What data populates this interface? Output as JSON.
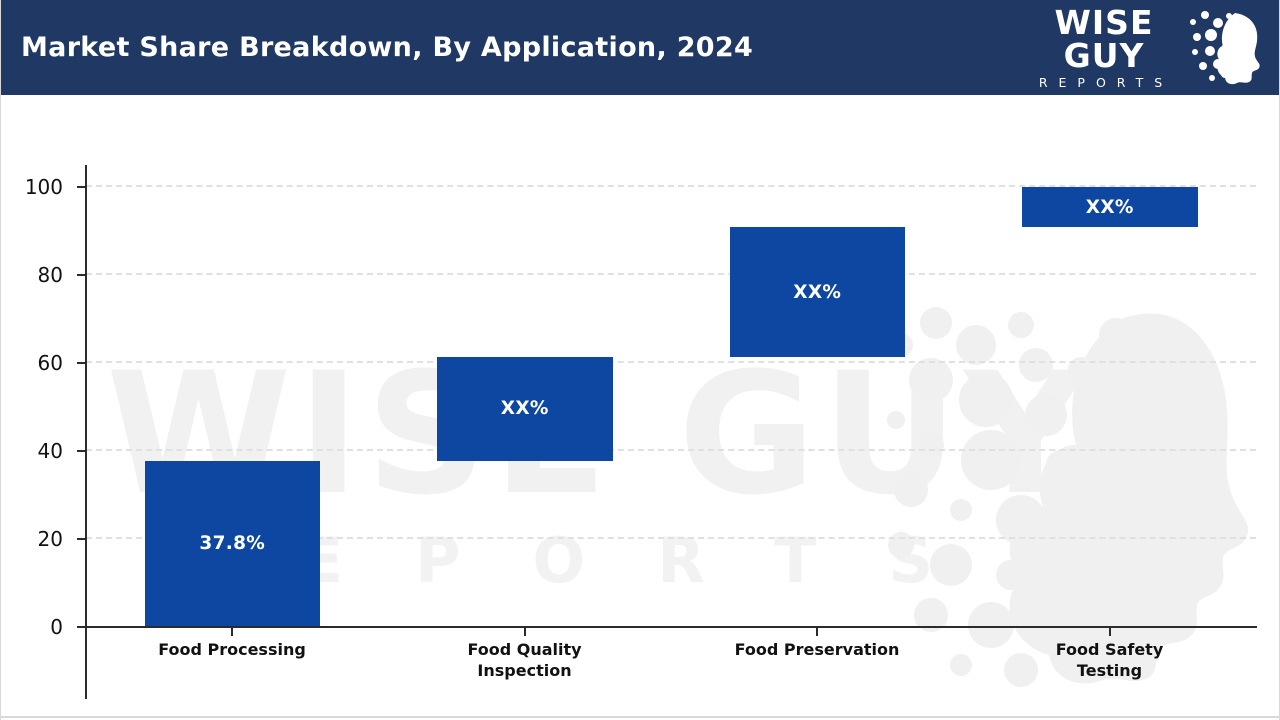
{
  "header": {
    "title": "Market Share Breakdown, By Application, 2024",
    "logo": {
      "wordmark": "WISE GUY",
      "subtext": "REPORTS"
    }
  },
  "watermark": {
    "wordmark": "WISE GUY",
    "subtext": "REPORTS"
  },
  "colors": {
    "header_bg": "#1f3864",
    "bar_fill": "#0d47a1",
    "bar_label": "#ffffff",
    "gridline": "#e0e0e0",
    "axis": "#2b2b2b",
    "tick_label": "#111111",
    "watermark": "#f1f1f1",
    "frame_border": "#d9d9d9",
    "background": "#ffffff"
  },
  "chart_data": {
    "type": "bar",
    "subtype": "floating-waterfall",
    "title": "Market Share Breakdown, By Application, 2024",
    "xlabel": "",
    "ylabel": "",
    "ylim": [
      0,
      100
    ],
    "yticks": [
      0,
      20,
      40,
      60,
      80,
      100
    ],
    "grid": "horizontal-dashed",
    "legend": "none",
    "categories": [
      "Food Processing",
      "Food Quality Inspection",
      "Food Preservation",
      "Food Safety Testing"
    ],
    "tick_labels": [
      "Food Processing",
      "Food Quality\nInspection",
      "Food Preservation",
      "Food Safety\nTesting"
    ],
    "bars": [
      {
        "category": "Food Processing",
        "start": 0,
        "end": 37.8,
        "value": 37.8,
        "label": "37.8%"
      },
      {
        "category": "Food Quality Inspection",
        "start": 37.8,
        "end": 61.4,
        "value": 23.6,
        "label": "XX%"
      },
      {
        "category": "Food Preservation",
        "start": 61.4,
        "end": 90.8,
        "value": 29.4,
        "label": "XX%"
      },
      {
        "category": "Food Safety Testing",
        "start": 90.8,
        "end": 100,
        "value": 9.2,
        "label": "XX%"
      }
    ]
  }
}
